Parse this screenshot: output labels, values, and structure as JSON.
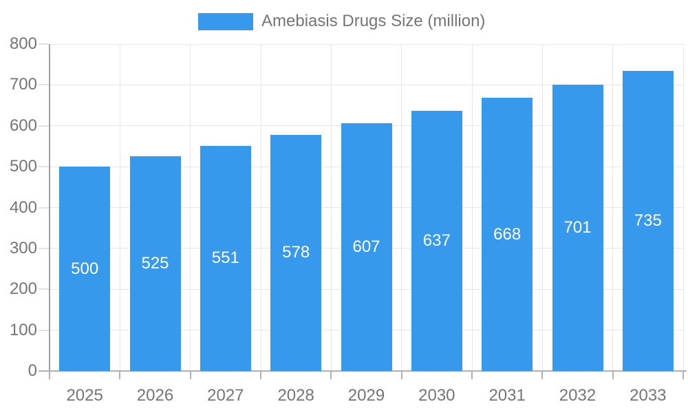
{
  "legend": {
    "label": "Amebiasis Drugs Size (million)"
  },
  "chart_data": {
    "type": "bar",
    "title": "Amebiasis Drugs Size (million)",
    "categories": [
      "2025",
      "2026",
      "2027",
      "2028",
      "2029",
      "2030",
      "2031",
      "2032",
      "2033"
    ],
    "series": [
      {
        "name": "Amebiasis Drugs Size (million)",
        "values": [
          500,
          525,
          551,
          578,
          607,
          637,
          668,
          701,
          735
        ]
      }
    ],
    "value_labels_shown": true,
    "xlabel": "",
    "ylabel": "",
    "ylim": [
      0,
      800
    ],
    "yticks": [
      0,
      100,
      200,
      300,
      400,
      500,
      600,
      700,
      800
    ],
    "grid": true,
    "legend_position": "top",
    "colors": {
      "bar": "#3799EC",
      "value_label": "#FFFFFF",
      "axis_text": "#757575",
      "y_axis_line": "#9E9E9E",
      "baseline": "#B0B0B0",
      "bottom_tick": "#B0B0B0",
      "left_tick": "#E2E2E2",
      "gridline": "#E6E6E6",
      "background": "#FFFFFF",
      "legend_text": "#757575"
    }
  }
}
